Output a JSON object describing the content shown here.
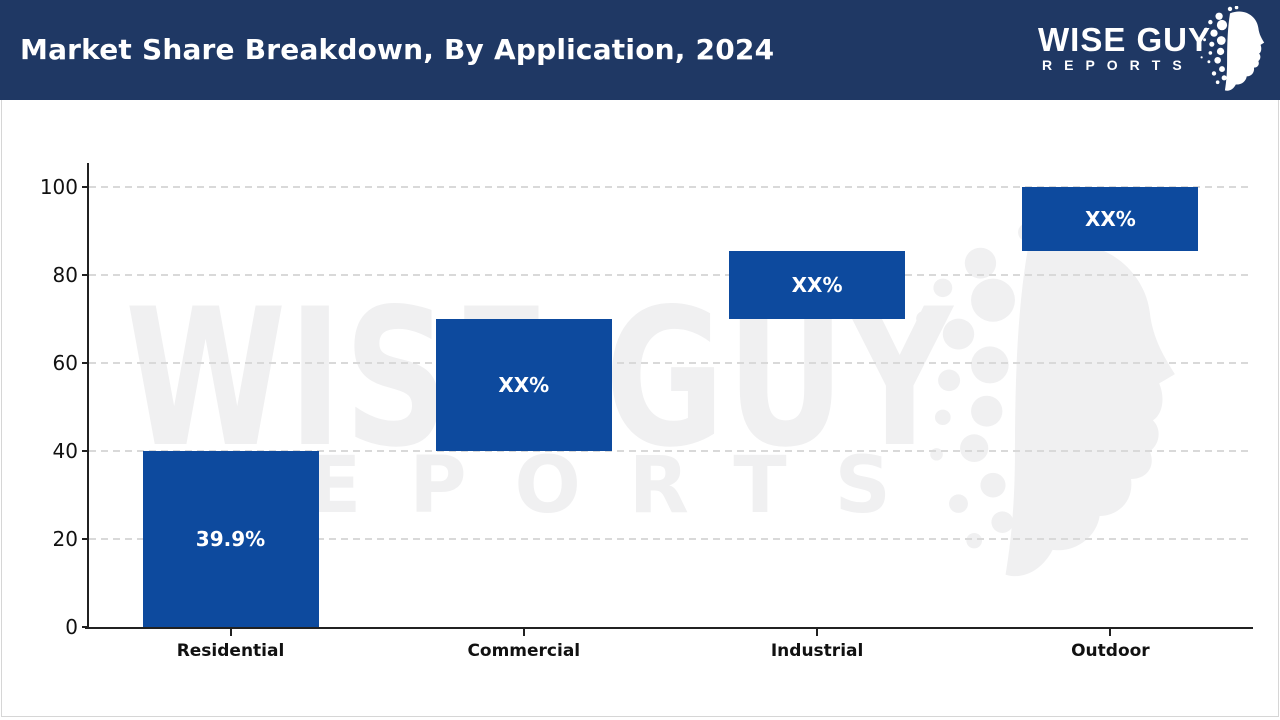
{
  "header": {
    "title": "Market Share Breakdown, By Application, 2024",
    "bg_color": "#1f3864",
    "logo": {
      "wordmark": "WISE GUY",
      "subtext": "REPORTS",
      "icon": "dotted-face-profile-icon"
    }
  },
  "watermark": {
    "line1": "WISE GUY",
    "line2": "REPORTS",
    "icon": "dotted-face-profile-icon",
    "color": "#f0f0f1"
  },
  "chart_data": {
    "type": "bar",
    "variant": "waterfall-floating-bars",
    "title": "Market Share Breakdown, By Application, 2024",
    "xlabel": "",
    "ylabel": "",
    "categories": [
      "Residential",
      "Commercial",
      "Industrial",
      "Outdoor"
    ],
    "segments": [
      {
        "category": "Residential",
        "start": 0,
        "end": 39.9,
        "label": "39.9%"
      },
      {
        "category": "Commercial",
        "start": 39.9,
        "end": 70,
        "label": "XX%"
      },
      {
        "category": "Industrial",
        "start": 70,
        "end": 85.5,
        "label": "XX%"
      },
      {
        "category": "Outdoor",
        "start": 85.5,
        "end": 100,
        "label": "XX%"
      }
    ],
    "yticks": [
      0,
      20,
      40,
      60,
      80,
      100
    ],
    "ylim": [
      0,
      105
    ],
    "grid": "horizontal-dashed",
    "legend": "none",
    "bar_color": "#0d4a9e",
    "bar_label_color": "#ffffff",
    "axis_color": "#212121",
    "gridline_color": "#d9d9d9"
  }
}
